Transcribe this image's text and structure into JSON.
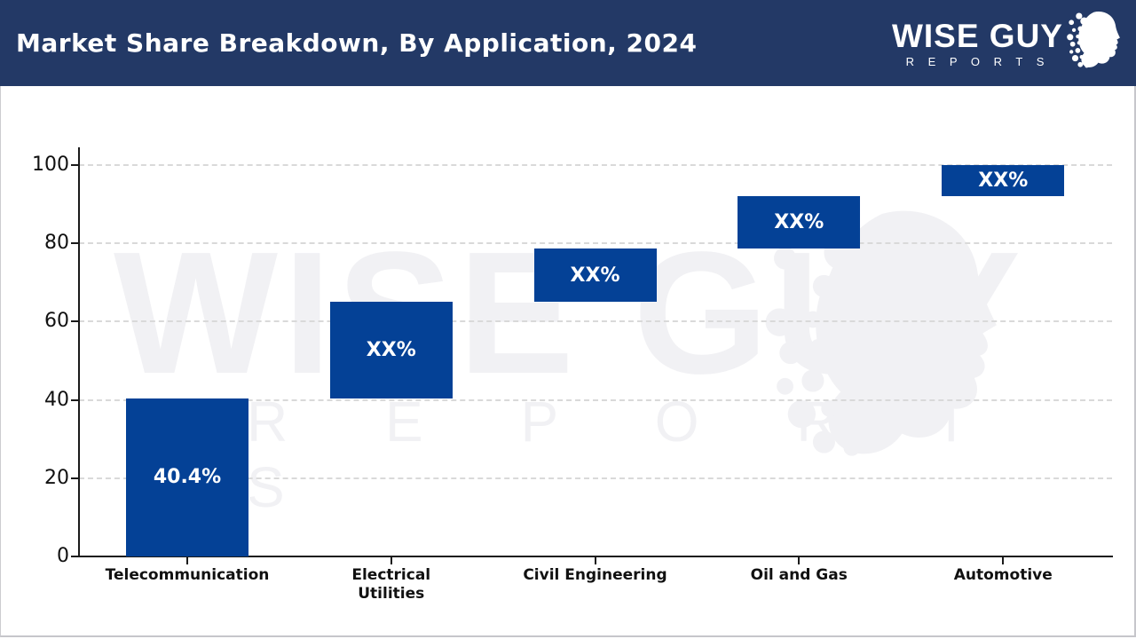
{
  "header": {
    "title": "Market Share Breakdown, By Application, 2024",
    "logo": {
      "name": "WISE GUY",
      "sub": "R E P O R T S"
    }
  },
  "watermark": {
    "name": "WISE GUY",
    "sub": "R E P O R T S"
  },
  "colors": {
    "header_bg": "#233966",
    "bar": "#044196",
    "bar_label": "#ffffff",
    "gridline": "#d9d9d9",
    "axis": "#1a1a1a",
    "watermark": "#f1f1f4"
  },
  "chart_data": {
    "type": "bar",
    "subtype": "waterfall",
    "title": "Market Share Breakdown, By Application, 2024",
    "xlabel": "",
    "ylabel": "",
    "ylim": [
      0,
      104
    ],
    "y_ticks": [
      0,
      20,
      40,
      60,
      80,
      100
    ],
    "grid": "horizontal-dashed",
    "legend": "none",
    "categories": [
      "Telecommunication",
      "Electrical Utilities",
      "Civil Engineering",
      "Oil and Gas",
      "Automotive"
    ],
    "x_tick_labels": [
      "Telecommunication",
      "Electrical\nUtilities",
      "Civil Engineering",
      "Oil and Gas",
      "Automotive"
    ],
    "values": [
      40.4,
      24.6,
      13.6,
      13.4,
      8.0
    ],
    "segments": [
      {
        "category": "Telecommunication",
        "start": 0,
        "end": 40.4,
        "label": "40.4%"
      },
      {
        "category": "Electrical Utilities",
        "start": 40.4,
        "end": 65.0,
        "label": "XX%"
      },
      {
        "category": "Civil Engineering",
        "start": 65.0,
        "end": 78.6,
        "label": "XX%"
      },
      {
        "category": "Oil and Gas",
        "start": 78.6,
        "end": 92.0,
        "label": "XX%"
      },
      {
        "category": "Automotive",
        "start": 92.0,
        "end": 100.0,
        "label": "XX%"
      }
    ]
  }
}
